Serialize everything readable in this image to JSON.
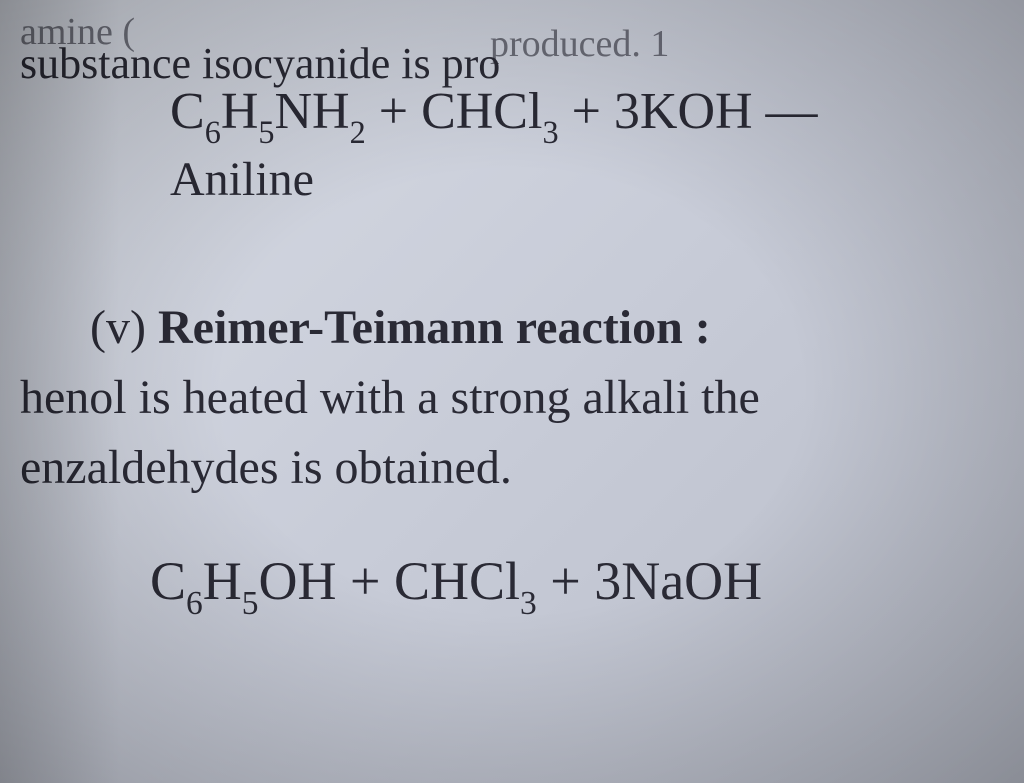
{
  "page": {
    "background_gradient": [
      "#d8dce5",
      "#c8ccd8",
      "#b8bcc8"
    ],
    "text_color": "#2a2a35",
    "font_family": "Georgia, 'Times New Roman', serif"
  },
  "fragments": {
    "cut_top_left": "amine (",
    "cut_top_right": "produced. 1"
  },
  "section_iv": {
    "intro_line": "substance isocyanide is pro",
    "equation": {
      "reactant_1": "C",
      "r1_sub1": "6",
      "r1_mid": "H",
      "r1_sub2": "5",
      "r1_end": "NH",
      "r1_sub3": "2",
      "plus_1": " + ",
      "reactant_2": "CHCl",
      "r2_sub1": "3",
      "plus_2": " + 3KOH —",
      "label": "Aniline"
    }
  },
  "section_v": {
    "numeral": "(v) ",
    "title": "Reimer-Teimann reaction :",
    "body_line_1": "henol is heated with a strong alkali the",
    "body_line_2": "enzaldehydes is obtained.",
    "equation": {
      "reactant_1": "C",
      "r1_sub1": "6",
      "r1_mid": "H",
      "r1_sub2": "5",
      "r1_end": "OH",
      "plus_1": " + ",
      "reactant_2": "CHCl",
      "r2_sub1": "3",
      "plus_2": " + 3NaOH"
    }
  },
  "typography": {
    "body_fontsize_pt": 36,
    "heading_fontsize_pt": 36,
    "equation_fontsize_pt": 40,
    "heading_weight": "bold"
  }
}
